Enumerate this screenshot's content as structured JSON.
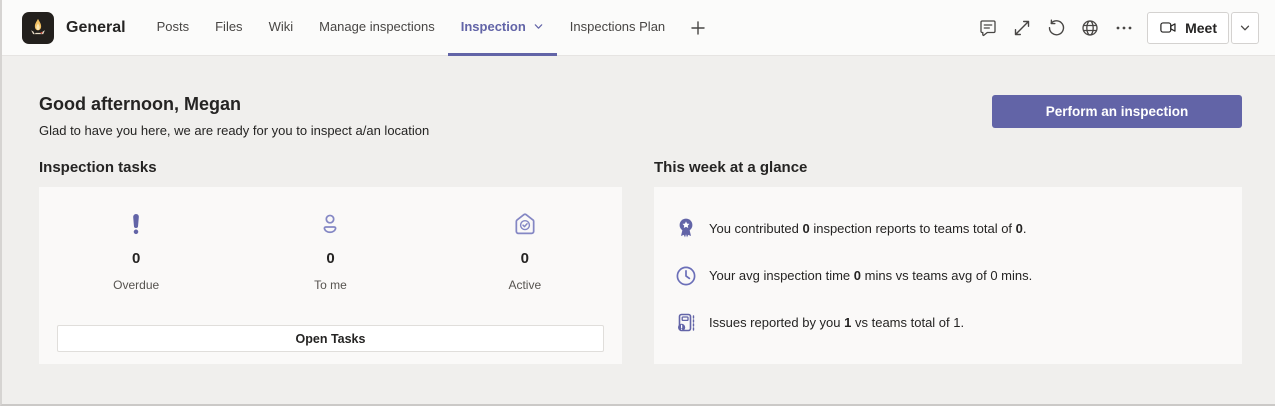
{
  "colors": {
    "accent": "#6264a7",
    "icon_purple": "#6b6fb8",
    "topbar_icon": "#484644"
  },
  "header": {
    "team_name": "General",
    "tabs": [
      {
        "label": "Posts",
        "active": false,
        "dropdown": false
      },
      {
        "label": "Files",
        "active": false,
        "dropdown": false
      },
      {
        "label": "Wiki",
        "active": false,
        "dropdown": false
      },
      {
        "label": "Manage inspections",
        "active": false,
        "dropdown": false
      },
      {
        "label": "Inspection",
        "active": true,
        "dropdown": true
      },
      {
        "label": "Inspections Plan",
        "active": false,
        "dropdown": false
      }
    ],
    "icons": [
      "chat-icon",
      "expand-icon",
      "refresh-icon",
      "globe-icon",
      "ellipsis-icon"
    ],
    "meet_label": "Meet"
  },
  "greeting": {
    "title": "Good afternoon, Megan",
    "subtitle": "Glad to have you here, we are ready for you to inspect a/an location",
    "cta_label": "Perform an inspection"
  },
  "tasks": {
    "title": "Inspection tasks",
    "stats": [
      {
        "icon": "exclamation-icon",
        "value": "0",
        "label": "Overdue"
      },
      {
        "icon": "person-icon",
        "value": "0",
        "label": "To me"
      },
      {
        "icon": "badge-check-icon",
        "value": "0",
        "label": "Active"
      }
    ],
    "open_tasks_label": "Open Tasks"
  },
  "glance": {
    "title": "This week at a glance",
    "items": [
      {
        "icon": "award-icon",
        "segments": [
          {
            "text": "You contributed ",
            "bold": false
          },
          {
            "text": "0",
            "bold": true
          },
          {
            "text": " inspection reports to teams total of ",
            "bold": false
          },
          {
            "text": "0",
            "bold": true
          },
          {
            "text": ".",
            "bold": false
          }
        ]
      },
      {
        "icon": "clock-icon",
        "segments": [
          {
            "text": "Your avg inspection time ",
            "bold": false
          },
          {
            "text": "0",
            "bold": true
          },
          {
            "text": " mins vs teams avg of 0 mins.",
            "bold": false
          }
        ]
      },
      {
        "icon": "issues-icon",
        "segments": [
          {
            "text": "Issues reported by you ",
            "bold": false
          },
          {
            "text": "1",
            "bold": true
          },
          {
            "text": " vs teams total of 1.",
            "bold": false
          }
        ]
      }
    ]
  }
}
